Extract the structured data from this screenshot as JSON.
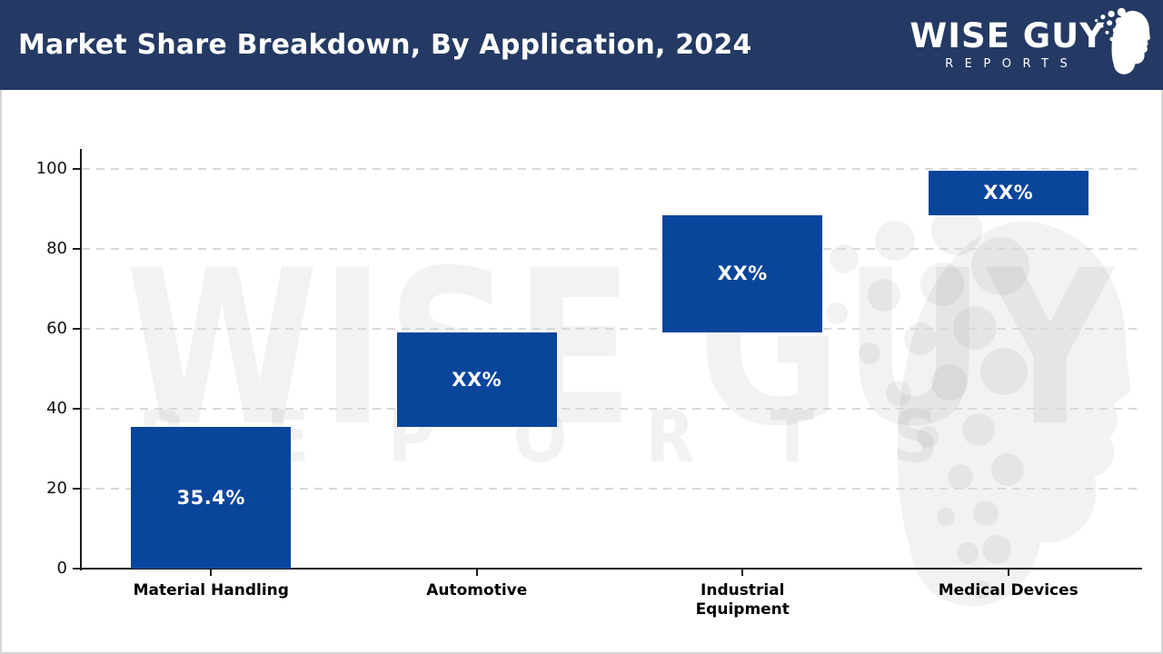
{
  "header": {
    "title": "Market Share Breakdown, By Application, 2024",
    "logo": {
      "line1": "WISE GUY",
      "line2": "REPORTS"
    }
  },
  "watermark": {
    "line1": "WISE GUY",
    "line2": "REPORTS"
  },
  "chart_data": {
    "type": "bar",
    "subtype": "waterfall-segments",
    "title": "Market Share Breakdown, By Application, 2024",
    "categories": [
      "Material Handling",
      "Automotive",
      "Industrial Equipment",
      "Medical Devices"
    ],
    "categories_display": [
      "Material Handling",
      "Automotive",
      "Industrial\nEquipment",
      "Medical Devices"
    ],
    "segments": [
      {
        "category": "Material Handling",
        "start": 0,
        "end": 35.4,
        "label": "35.4%"
      },
      {
        "category": "Automotive",
        "start": 35.4,
        "end": 59.0,
        "label": "XX%"
      },
      {
        "category": "Industrial Equipment",
        "start": 59.0,
        "end": 88.5,
        "label": "XX%"
      },
      {
        "category": "Medical Devices",
        "start": 88.5,
        "end": 99.5,
        "label": "XX%"
      }
    ],
    "yticks": [
      0,
      20,
      40,
      60,
      80,
      100
    ],
    "ylim": [
      0,
      105
    ],
    "grid": "horizontal-dashed",
    "legend": "none",
    "bar_color": "#0a459c",
    "bar_label_color": "#ffffff"
  },
  "colors": {
    "header_bg": "#243963",
    "bar": "#0a459c",
    "axis": "#1c1c1c",
    "grid": "#d9d9d9",
    "page_border": "#d6d6d6"
  }
}
